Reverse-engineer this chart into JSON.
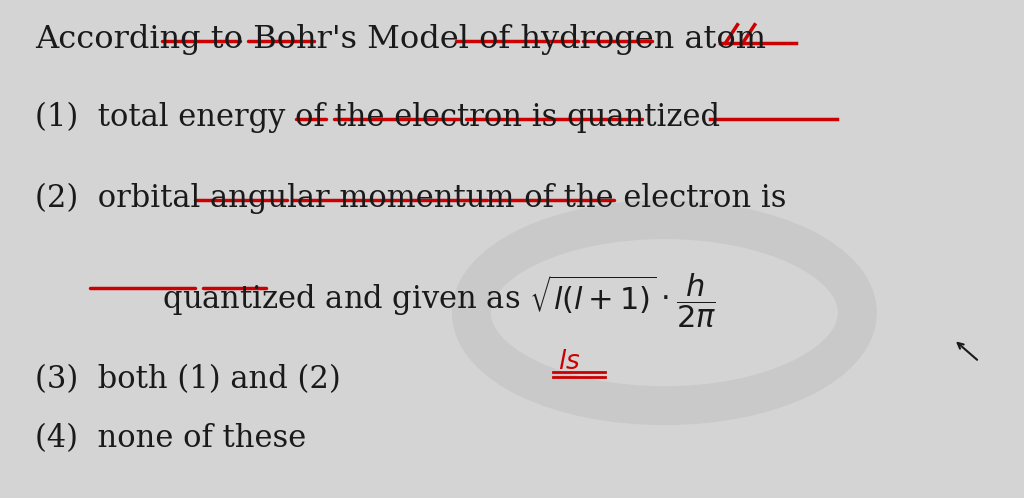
{
  "background_color": "#d4d4d4",
  "text_color": "#1a1a1a",
  "red_color": "#cc0000",
  "title_line": "According to Bohr's Model of hydrogen atom",
  "line1": "(1)  total energy of the electron is quantized",
  "line2": "(2)  orbital angular momentum of the electron is",
  "line3_math": "        quantized and given as $\\sqrt{l(l+1)} \\cdot \\dfrac{h}{2\\pi}$",
  "line4": "(3)  both (1) and (2)",
  "line5": "(4)  none of these",
  "title_fontsize": 23,
  "main_fontsize": 22,
  "figsize": [
    10.24,
    4.98
  ],
  "dpi": 100
}
